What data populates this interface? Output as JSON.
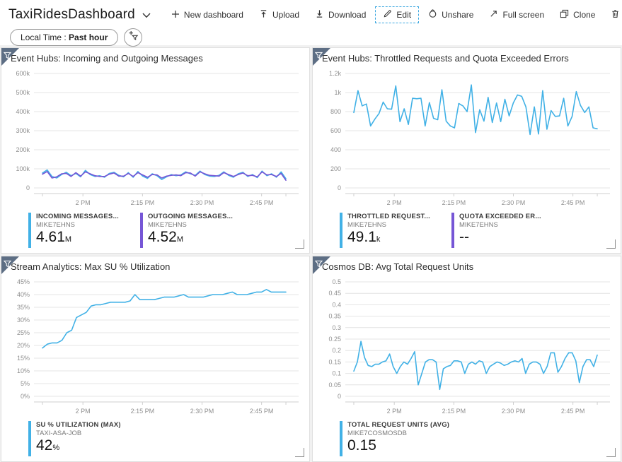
{
  "header": {
    "title": "TaxiRidesDashboard",
    "toolbar": {
      "new_dashboard": "New dashboard",
      "upload": "Upload",
      "download": "Download",
      "edit": "Edit",
      "unshare": "Unshare",
      "full_screen": "Full screen",
      "clone": "Clone",
      "delete": "Delete"
    },
    "filter_pill": {
      "label": "Local Time :",
      "value": "Past hour"
    }
  },
  "colors": {
    "line_blue": "#41b1e6",
    "line_purple": "#7656d6",
    "badge": "#5d6e84",
    "accent_focus": "#3aa7e0"
  },
  "tiles": [
    {
      "title": "Event Hubs: Incoming and Outgoing Messages",
      "legend": [
        {
          "label": "INCOMING MESSAGES...",
          "sub": "MIKE7EHNS",
          "value": "4.61",
          "unit": "M",
          "color": "#41b1e6"
        },
        {
          "label": "OUTGOING MESSAGES...",
          "sub": "MIKE7EHNS",
          "value": "4.52",
          "unit": "M",
          "color": "#7656d6"
        }
      ]
    },
    {
      "title": "Event Hubs: Throttled Requests and Quota Exceeded Errors",
      "legend": [
        {
          "label": "THROTTLED REQUEST...",
          "sub": "MIKE7EHNS",
          "value": "49.1",
          "unit": "k",
          "color": "#41b1e6"
        },
        {
          "label": "QUOTA EXCEEDED ER...",
          "sub": "MIKE7EHNS",
          "value": "--",
          "unit": "",
          "color": "#7656d6"
        }
      ]
    },
    {
      "title": "Stream Analytics: Max SU % Utilization",
      "legend": [
        {
          "label": "SU % UTILIZATION (MAX)",
          "sub": "TAXI-ASA-JOB",
          "value": "42",
          "unit": "%",
          "color": "#41b1e6"
        }
      ]
    },
    {
      "title": "Cosmos DB: Avg Total Request Units",
      "legend": [
        {
          "label": "TOTAL REQUEST UNITS (AVG)",
          "sub": "MIKE7COSMOSDB",
          "value": "0.15",
          "unit": "",
          "color": "#41b1e6"
        }
      ]
    }
  ],
  "chart_data": [
    {
      "type": "line",
      "title": "Event Hubs: Incoming and Outgoing Messages",
      "ylim": [
        0,
        600000
      ],
      "y_ticks": [
        "0",
        "100k",
        "200k",
        "300k",
        "400k",
        "500k",
        "600k"
      ],
      "x_ticks": [
        "2 PM",
        "2:15 PM",
        "2:30 PM",
        "2:45 PM"
      ],
      "grid": true,
      "legend_position": "bottom",
      "series": [
        {
          "name": "Incoming Messages",
          "color": "#41b1e6",
          "values": [
            78000,
            94000,
            60000,
            52000,
            70000,
            82000,
            64000,
            76000,
            58000,
            92000,
            70000,
            60000,
            64000,
            56000,
            76000,
            82000,
            66000,
            58000,
            80000,
            56000,
            86000,
            62000,
            50000,
            74000,
            64000,
            44000,
            58000,
            70000,
            64000,
            68000,
            84000,
            74000,
            66000,
            88000,
            70000,
            62000,
            60000,
            66000,
            84000,
            66000,
            56000,
            74000,
            82000,
            60000,
            70000,
            54000,
            88000,
            64000,
            74000,
            56000,
            84000,
            48000
          ]
        },
        {
          "name": "Outgoing Messages",
          "color": "#7656d6",
          "values": [
            72000,
            86000,
            52000,
            58000,
            74000,
            76000,
            60000,
            80000,
            62000,
            84000,
            74000,
            64000,
            60000,
            60000,
            72000,
            78000,
            62000,
            62000,
            76000,
            60000,
            80000,
            68000,
            56000,
            70000,
            68000,
            52000,
            62000,
            66000,
            68000,
            64000,
            80000,
            78000,
            62000,
            84000,
            74000,
            66000,
            64000,
            62000,
            80000,
            70000,
            60000,
            70000,
            78000,
            64000,
            66000,
            58000,
            84000,
            68000,
            70000,
            60000,
            76000,
            40000
          ]
        }
      ]
    },
    {
      "type": "line",
      "title": "Event Hubs: Throttled Requests and Quota Exceeded Errors",
      "ylim": [
        0,
        1200
      ],
      "y_ticks": [
        "0",
        "200",
        "400",
        "600",
        "800",
        "1k",
        "1.2k"
      ],
      "x_ticks": [
        "2 PM",
        "2:15 PM",
        "2:30 PM",
        "2:45 PM"
      ],
      "grid": true,
      "legend_position": "bottom",
      "series": [
        {
          "name": "Throttled Requests",
          "color": "#41b1e6",
          "values": [
            790,
            1020,
            860,
            880,
            650,
            720,
            780,
            900,
            830,
            825,
            1070,
            695,
            830,
            665,
            940,
            935,
            940,
            650,
            895,
            730,
            715,
            1030,
            700,
            650,
            630,
            885,
            860,
            800,
            1080,
            580,
            820,
            700,
            950,
            685,
            890,
            695,
            930,
            755,
            890,
            975,
            960,
            850,
            560,
            850,
            565,
            1020,
            615,
            810,
            750,
            755,
            940,
            650,
            750,
            1010,
            865,
            790,
            850,
            630,
            620
          ]
        }
      ]
    },
    {
      "type": "line",
      "title": "Stream Analytics: Max SU % Utilization",
      "ylim": [
        0,
        45
      ],
      "y_ticks": [
        "0%",
        "5%",
        "10%",
        "15%",
        "20%",
        "25%",
        "30%",
        "35%",
        "40%",
        "45%"
      ],
      "x_ticks": [
        "2 PM",
        "2:15 PM",
        "2:30 PM",
        "2:45 PM"
      ],
      "grid": true,
      "legend_position": "bottom",
      "series": [
        {
          "name": "SU % Utilization (Max)",
          "color": "#41b1e6",
          "values": [
            19,
            20.5,
            21,
            21,
            22,
            25,
            26,
            31,
            32,
            33,
            35.5,
            36,
            36,
            36.5,
            37,
            37,
            37,
            37,
            37.5,
            40,
            38,
            38,
            38,
            38,
            38.5,
            39,
            39,
            39,
            39.5,
            40,
            39,
            39,
            39,
            39,
            39.5,
            40,
            40,
            40,
            40.5,
            41,
            40,
            40,
            40,
            40.5,
            41,
            41,
            42,
            41,
            41,
            41,
            41
          ]
        }
      ]
    },
    {
      "type": "line",
      "title": "Cosmos DB: Avg Total Request Units",
      "ylim": [
        0,
        0.5
      ],
      "y_ticks": [
        "0",
        "0.05",
        "0.1",
        "0.15",
        "0.2",
        "0.25",
        "0.3",
        "0.35",
        "0.4",
        "0.45",
        "0.5"
      ],
      "x_ticks": [
        "2 PM",
        "2:15 PM",
        "2:30 PM",
        "2:45 PM"
      ],
      "grid": true,
      "legend_position": "bottom",
      "series": [
        {
          "name": "Total Request Units (Avg)",
          "color": "#41b1e6",
          "values": [
            0.11,
            0.15,
            0.24,
            0.17,
            0.135,
            0.13,
            0.14,
            0.14,
            0.15,
            0.155,
            0.185,
            0.13,
            0.1,
            0.13,
            0.15,
            0.14,
            0.165,
            0.195,
            0.05,
            0.1,
            0.15,
            0.16,
            0.16,
            0.15,
            0.03,
            0.12,
            0.13,
            0.135,
            0.155,
            0.155,
            0.15,
            0.1,
            0.14,
            0.15,
            0.14,
            0.155,
            0.15,
            0.1,
            0.13,
            0.14,
            0.15,
            0.145,
            0.135,
            0.14,
            0.15,
            0.155,
            0.15,
            0.165,
            0.1,
            0.14,
            0.15,
            0.15,
            0.14,
            0.1,
            0.13,
            0.19,
            0.19,
            0.105,
            0.13,
            0.165,
            0.19,
            0.19,
            0.155,
            0.06,
            0.13,
            0.16,
            0.16,
            0.13,
            0.18
          ]
        }
      ]
    }
  ]
}
